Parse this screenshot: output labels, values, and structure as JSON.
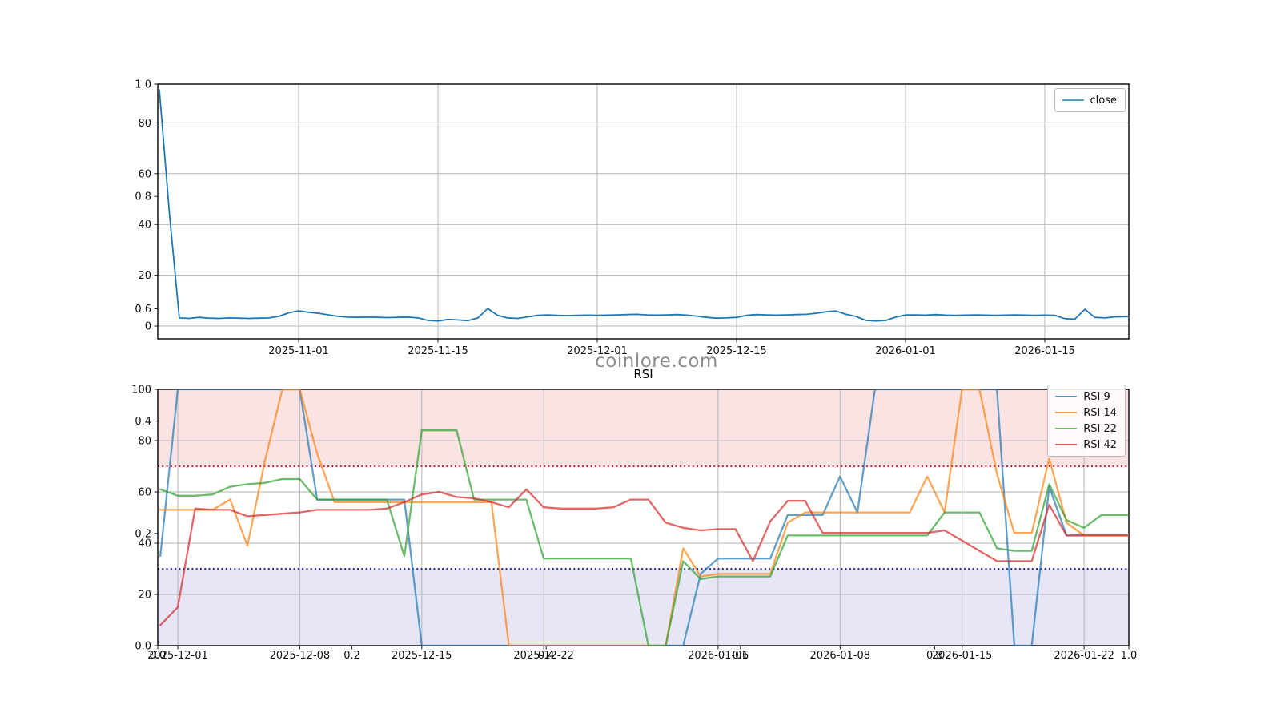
{
  "watermark": "coinlore.com",
  "colors": {
    "close_line": "#1f77b4",
    "rsi9": "#1f77b4",
    "rsi14": "#ff7f0e",
    "rsi22": "#2ca02c",
    "rsi42": "#d62728",
    "rsi_line_opacity": 0.7,
    "overbought_band": "#fbe3e4",
    "oversold_band": "#e6e6f7",
    "overbought_line": "#c81e32",
    "oversold_line": "#2222aa",
    "grid": "#b4b4b4",
    "spine": "#000000",
    "tick_text": "#111111",
    "watermark_text": "#8d8d8d"
  },
  "overlay_axis": {
    "y_tick_labels": [
      "1.0",
      "0.8",
      "0.6",
      "0.4",
      "0.2",
      "0.0"
    ],
    "x_tick_labels": [
      "0.0",
      "0.2",
      "0.4",
      "0.6",
      "0.8",
      "1.0"
    ]
  },
  "chart_data": [
    {
      "type": "line",
      "title": "",
      "xlabel": "",
      "ylabel": "",
      "x_start_date": "2025-10-18",
      "x_interval": "daily",
      "x_tick_labels": [
        "2025-11-01",
        "2025-11-15",
        "2025-12-01",
        "2025-12-15",
        "2026-01-01",
        "2026-01-15"
      ],
      "y_tick_labels": [
        "0",
        "20",
        "40",
        "60",
        "80"
      ],
      "ylim": [
        -5,
        95.3
      ],
      "grid": true,
      "legend_position": "upper right",
      "series": [
        {
          "name": "close",
          "color": "#1f77b4",
          "values": [
            93,
            45,
            3.2,
            3,
            3.4,
            3.1,
            3,
            3.2,
            3.1,
            3,
            3.1,
            3.2,
            3.8,
            5.2,
            6,
            5.4,
            5,
            4.4,
            3.8,
            3.5,
            3.4,
            3.5,
            3.4,
            3.3,
            3.4,
            3.5,
            3.2,
            2.2,
            2,
            2.6,
            2.4,
            2.1,
            3.2,
            6.9,
            4.2,
            3.2,
            3,
            3.6,
            4.2,
            4.4,
            4.2,
            4.1,
            4.2,
            4.3,
            4.2,
            4.3,
            4.4,
            4.5,
            4.6,
            4.4,
            4.3,
            4.4,
            4.5,
            4.3,
            3.9,
            3.4,
            3.1,
            3.2,
            3.4,
            4.2,
            4.5,
            4.4,
            4.3,
            4.4,
            4.5,
            4.6,
            5,
            5.6,
            5.9,
            4.6,
            3.8,
            2.2,
            2,
            2.2,
            3.5,
            4.4,
            4.4,
            4.3,
            4.5,
            4.3,
            4.2,
            4.3,
            4.4,
            4.3,
            4.2,
            4.3,
            4.4,
            4.3,
            4.2,
            4.3,
            4.2,
            2.9,
            2.7,
            6.6,
            3.4,
            3.2,
            3.6,
            3.7,
            3.8
          ]
        }
      ]
    },
    {
      "type": "line",
      "title": "RSI",
      "xlabel": "",
      "ylabel": "",
      "x_start_date": "2025-11-30",
      "x_interval": "daily",
      "x_tick_labels": [
        "2025-12-01",
        "2025-12-08",
        "2025-12-15",
        "2025-12-22",
        "2026-01-01",
        "2026-01-08",
        "2026-01-15",
        "2026-01-22"
      ],
      "y_tick_labels": [
        "20",
        "40",
        "60",
        "80",
        "100"
      ],
      "ylim": [
        0,
        100
      ],
      "grid": true,
      "legend_position": "upper right",
      "levels": {
        "overbought": 70,
        "oversold": 30
      },
      "series": [
        {
          "name": "RSI 9",
          "color": "#1f77b4",
          "values": [
            35,
            100,
            100,
            100,
            100,
            100,
            100,
            100,
            100,
            57,
            57,
            57,
            57,
            57,
            57,
            0,
            0,
            0,
            0,
            0,
            0,
            0,
            0,
            0,
            0,
            0,
            0,
            0,
            0,
            0,
            0,
            28,
            34,
            34,
            34,
            34,
            51,
            51,
            51,
            66,
            52,
            100,
            100,
            100,
            100,
            100,
            100,
            100,
            100,
            0,
            0,
            62,
            43,
            43,
            43,
            43,
            43
          ]
        },
        {
          "name": "RSI 14",
          "color": "#ff7f0e",
          "values": [
            53,
            53,
            53,
            53,
            57,
            39,
            72,
            100,
            100,
            75,
            56,
            56,
            56,
            56,
            56,
            56,
            56,
            56,
            56,
            56,
            0,
            0,
            0,
            0,
            0,
            0,
            0,
            0,
            0,
            0,
            38,
            27,
            28,
            28,
            28,
            28,
            48,
            52,
            52,
            52,
            52,
            52,
            52,
            52,
            66,
            52,
            100,
            100,
            67,
            44,
            44,
            73,
            48,
            43,
            43,
            43,
            43
          ]
        },
        {
          "name": "RSI 22",
          "color": "#2ca02c",
          "values": [
            61,
            58.5,
            58.5,
            59,
            62,
            63,
            63.5,
            65,
            65,
            57,
            57,
            57,
            57,
            57,
            35,
            84,
            84,
            84,
            57,
            57,
            57,
            57,
            34,
            34,
            34,
            34,
            34,
            34,
            0,
            0,
            33,
            26,
            27,
            27,
            27,
            27,
            43,
            43,
            43,
            43,
            43,
            43,
            43,
            43,
            43,
            52,
            52,
            52,
            38,
            37,
            37,
            63,
            49,
            46,
            51,
            51,
            51
          ]
        },
        {
          "name": "RSI 42",
          "color": "#d62728",
          "values": [
            8,
            15,
            53.5,
            53,
            53,
            50.5,
            51,
            51.5,
            52,
            53,
            53,
            53,
            53,
            53.5,
            56,
            59,
            60,
            58,
            57.5,
            56,
            54,
            61,
            54,
            53.5,
            53.5,
            53.5,
            54,
            57,
            57,
            48,
            46,
            45,
            45.5,
            45.5,
            33,
            48.5,
            56.5,
            56.5,
            44,
            44,
            44,
            44,
            44,
            44,
            44,
            45,
            41,
            37,
            33,
            33,
            33,
            55,
            43,
            43,
            43,
            43,
            43
          ]
        }
      ]
    }
  ]
}
